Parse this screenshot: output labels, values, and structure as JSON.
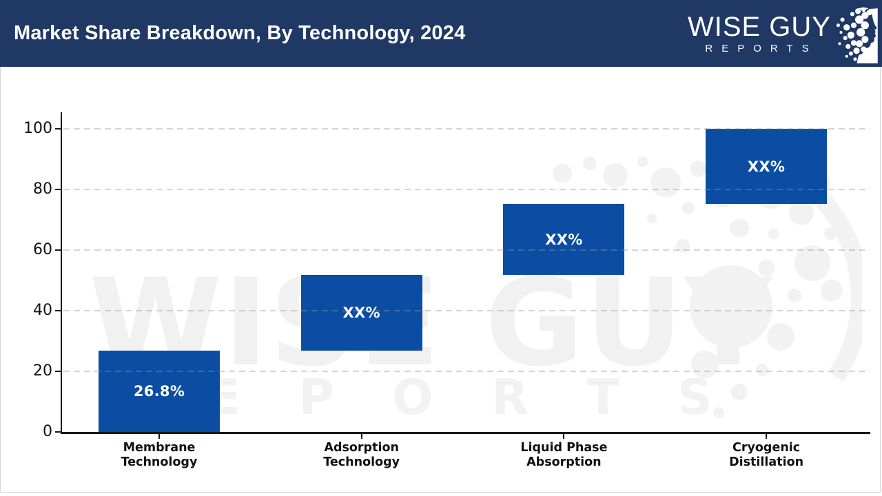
{
  "header": {
    "title": "Market Share Breakdown, By Technology, 2024",
    "logo": {
      "primary": "WISE GUY",
      "secondary": "REPORTS"
    }
  },
  "watermark": {
    "primary": "WISE GUY",
    "secondary": "R E P O R T S"
  },
  "chart_data": {
    "type": "bar",
    "variant": "waterfall",
    "title": "Market Share Breakdown, By Technology, 2024",
    "categories": [
      "Membrane Technology",
      "Adsorption Technology",
      "Liquid Phase Absorption",
      "Cryogenic Distillation"
    ],
    "category_lines": [
      [
        "Membrane",
        "Technology"
      ],
      [
        "Adsorption",
        "Technology"
      ],
      [
        "Liquid Phase",
        "Absorption"
      ],
      [
        "Cryogenic",
        "Distillation"
      ]
    ],
    "bars": [
      {
        "label": "26.8%",
        "start": 0,
        "end": 26.8
      },
      {
        "label": "XX%",
        "start": 26.8,
        "end": 51.8
      },
      {
        "label": "XX%",
        "start": 51.8,
        "end": 75.2
      },
      {
        "label": "XX%",
        "start": 75.2,
        "end": 100
      }
    ],
    "yticks": [
      0,
      20,
      40,
      60,
      80,
      100
    ],
    "ylim": [
      0,
      105
    ],
    "xlabel": "",
    "ylabel": "",
    "grid": {
      "horizontal": true,
      "style": "dashed"
    },
    "legend": "none",
    "bar_color": "#0b4da2",
    "bar_label_color": "#ffffff"
  },
  "colors": {
    "header_bg": "#1f3864",
    "bar": "#0b4da2",
    "axis": "#1a1a1a",
    "gridline": "#dcdcdc",
    "watermark": "#f1f1f1",
    "page_border": "#d6d6d6"
  }
}
